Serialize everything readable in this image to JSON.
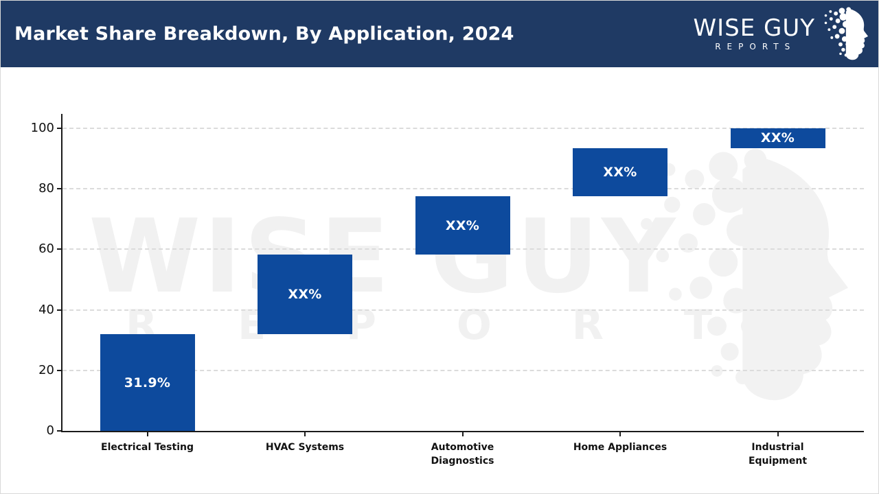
{
  "header": {
    "title": "Market Share Breakdown, By Application, 2024",
    "logo": {
      "name": "Wise Guy Reports",
      "line1": "WISE GUY",
      "line2": "REPORTS"
    }
  },
  "watermark": {
    "line1": "WISE GUY",
    "line2": "R E P O R T S"
  },
  "colors": {
    "header_bg": "#1f3a64",
    "bar": "#0d4a9d",
    "grid": "#dbdbdb",
    "axis": "#1a1a1a",
    "watermark": "#f1f1f1",
    "bar_label_text": "#ffffff"
  },
  "chart_data": {
    "type": "bar",
    "subtype": "waterfall-segments",
    "title": "Market Share Breakdown, By Application, 2024",
    "categories": [
      "Electrical Testing",
      "HVAC Systems",
      "Automotive\nDiagnostics",
      "Home Appliances",
      "Industrial\nEquipment"
    ],
    "segments": [
      {
        "category": "Electrical Testing",
        "label": "31.9%",
        "start": 0,
        "end": 31.9,
        "value": 31.9
      },
      {
        "category": "HVAC Systems",
        "label": "XX%",
        "start": 31.9,
        "end": 58.3,
        "value": 26.4
      },
      {
        "category": "Automotive Diagnostics",
        "label": "XX%",
        "start": 58.3,
        "end": 77.5,
        "value": 19.2
      },
      {
        "category": "Home Appliances",
        "label": "XX%",
        "start": 77.5,
        "end": 93.5,
        "value": 16.0
      },
      {
        "category": "Industrial Equipment",
        "label": "XX%",
        "start": 93.5,
        "end": 100,
        "value": 6.5
      }
    ],
    "yticks": [
      0,
      20,
      40,
      60,
      80,
      100
    ],
    "ytick_labels": [
      "0",
      "20",
      "40",
      "60",
      "80",
      "100"
    ],
    "ylim": [
      0,
      105
    ],
    "xlabel": "",
    "ylabel": "",
    "grid": "horizontal-dashed",
    "legend": "none"
  }
}
